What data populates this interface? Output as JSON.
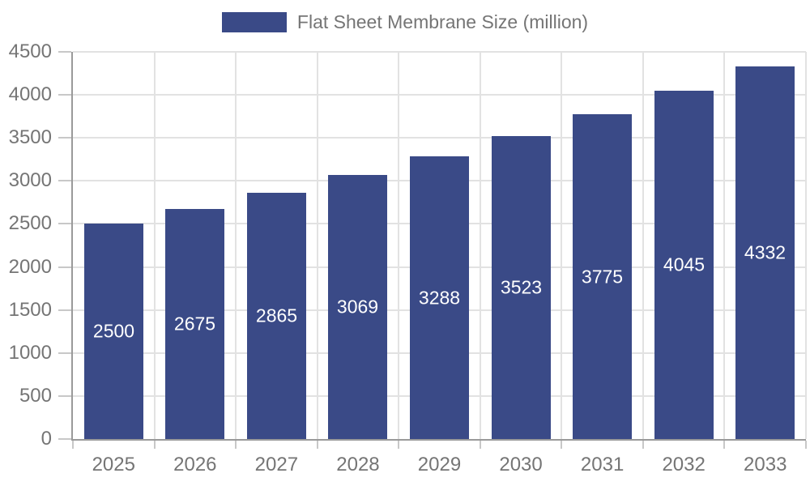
{
  "chart_data": {
    "type": "bar",
    "title": "",
    "legend": "Flat Sheet Membrane Size (million)",
    "categories": [
      "2025",
      "2026",
      "2027",
      "2028",
      "2029",
      "2030",
      "2031",
      "2032",
      "2033"
    ],
    "series": [
      {
        "name": "Flat Sheet Membrane Size (million)",
        "values": [
          2500,
          2675,
          2865,
          3069,
          3288,
          3523,
          3775,
          4045,
          4332
        ]
      }
    ],
    "xlabel": "",
    "ylabel": "",
    "ylim": [
      0,
      4500
    ],
    "ytick_step": 500,
    "ytick_labels": [
      "0",
      "500",
      "1000",
      "1500",
      "2000",
      "2500",
      "3000",
      "3500",
      "4000",
      "4500"
    ],
    "grid": true,
    "legend_position": "top-center",
    "value_labels_position": "inside-center",
    "colors": {
      "bar": "#3A4A87",
      "value_label": "#ffffff",
      "grid": "#e2e2e2",
      "axis": "#9a9a9a",
      "tick_text": "#757575"
    }
  }
}
